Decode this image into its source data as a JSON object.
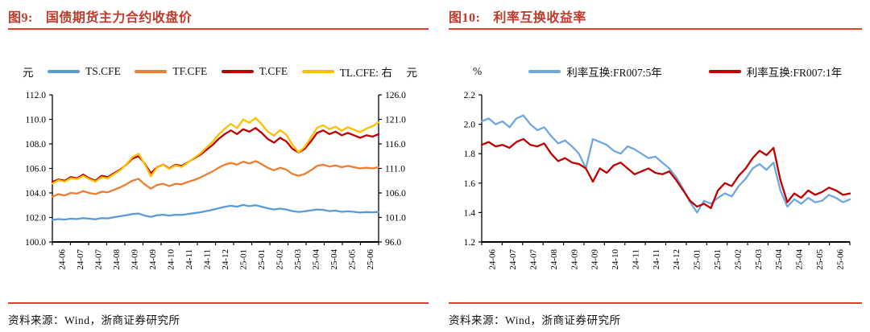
{
  "accent": {
    "title_color": "#c0392b",
    "rule_color": "#e83c2d",
    "axis_color": "#000000"
  },
  "figure9": {
    "label": "图9:",
    "title": "国债期货主力合约收盘价",
    "source_label": "资料来源：Wind，浙商证券研究所"
  },
  "figure10": {
    "label": "图10:",
    "title": "利率互换收益率",
    "source_label": "资料来源：Wind，浙商证券研究所"
  },
  "chart_data": [
    {
      "id": "treasury-futures",
      "type": "line",
      "title": "国债期货主力合约收盘价",
      "unit_left": "元",
      "unit_right": "元",
      "grid": false,
      "legend_position": "top",
      "x_tick_labels": [
        "24-06",
        "24-07",
        "24-07",
        "24-08",
        "24-09",
        "24-09",
        "24-10",
        "24-11",
        "24-11",
        "24-12",
        "25-01",
        "25-01",
        "25-02",
        "25-03",
        "25-04",
        "25-04",
        "25-05",
        "25-06"
      ],
      "y_axis_left": {
        "min": 100.0,
        "max": 112.0,
        "step": 2.0,
        "tick_labels": [
          "112.0",
          "110.0",
          "108.0",
          "106.0",
          "104.0",
          "102.0",
          "100.0"
        ]
      },
      "y_axis_right": {
        "min": 96.0,
        "max": 126.0,
        "step": 5.0,
        "tick_labels": [
          "126.0",
          "121.0",
          "116.0",
          "111.0",
          "106.0",
          "101.0",
          "96.0"
        ]
      },
      "series": [
        {
          "name": "TS.CFE",
          "color": "#5b9bd5",
          "axis": "left",
          "values": [
            101.8,
            101.87,
            101.83,
            101.9,
            101.87,
            101.95,
            101.9,
            101.85,
            101.95,
            101.93,
            102.02,
            102.1,
            102.18,
            102.28,
            102.32,
            102.15,
            102.05,
            102.18,
            102.22,
            102.15,
            102.22,
            102.2,
            102.28,
            102.35,
            102.42,
            102.52,
            102.62,
            102.75,
            102.87,
            102.95,
            102.88,
            103.02,
            102.92,
            103.0,
            102.88,
            102.75,
            102.65,
            102.72,
            102.65,
            102.52,
            102.45,
            102.5,
            102.58,
            102.65,
            102.62,
            102.52,
            102.56,
            102.46,
            102.5,
            102.46,
            102.4,
            102.44,
            102.42,
            102.46
          ]
        },
        {
          "name": "TF.CFE",
          "color": "#ed7d31",
          "axis": "left",
          "values": [
            103.7,
            103.9,
            103.8,
            104.0,
            103.95,
            104.15,
            104.0,
            103.9,
            104.1,
            104.05,
            104.25,
            104.45,
            104.7,
            105.0,
            105.15,
            104.7,
            104.35,
            104.65,
            104.75,
            104.55,
            104.75,
            104.7,
            104.9,
            105.05,
            105.25,
            105.5,
            105.75,
            106.05,
            106.3,
            106.45,
            106.3,
            106.55,
            106.4,
            106.6,
            106.35,
            106.05,
            105.85,
            106.05,
            105.9,
            105.55,
            105.4,
            105.55,
            105.85,
            106.2,
            106.3,
            106.15,
            106.25,
            106.1,
            106.2,
            106.1,
            106.0,
            106.05,
            106.0,
            106.1
          ]
        },
        {
          "name": "T.CFE",
          "color": "#c00000",
          "axis": "left",
          "values": [
            104.9,
            105.1,
            105.0,
            105.3,
            105.2,
            105.5,
            105.2,
            105.0,
            105.4,
            105.3,
            105.6,
            105.9,
            106.3,
            106.8,
            107.0,
            106.4,
            105.6,
            106.1,
            106.3,
            106.0,
            106.3,
            106.2,
            106.5,
            106.8,
            107.1,
            107.5,
            107.9,
            108.4,
            108.8,
            109.1,
            108.8,
            109.2,
            109.0,
            109.3,
            108.9,
            108.4,
            108.1,
            108.5,
            108.2,
            107.6,
            107.3,
            107.6,
            108.2,
            108.9,
            109.1,
            108.8,
            109.0,
            108.7,
            108.9,
            108.7,
            108.5,
            108.7,
            108.6,
            108.8
          ]
        },
        {
          "name": "TL.CFE: 右",
          "color": "#ffc000",
          "axis": "right",
          "values": [
            107.9,
            108.6,
            108.3,
            109.0,
            108.8,
            109.5,
            108.8,
            108.3,
            109.2,
            109.0,
            109.8,
            110.6,
            111.8,
            113.3,
            114.0,
            111.9,
            109.4,
            111.2,
            111.7,
            110.9,
            111.6,
            111.3,
            112.2,
            113.1,
            114.0,
            115.2,
            116.4,
            117.9,
            119.1,
            120.1,
            119.2,
            121.0,
            120.3,
            121.3,
            120.0,
            118.5,
            117.7,
            118.8,
            117.9,
            115.8,
            114.3,
            115.4,
            117.3,
            119.3,
            119.8,
            119.0,
            119.5,
            118.7,
            119.4,
            118.9,
            118.4,
            119.1,
            119.6,
            120.4
          ]
        }
      ]
    },
    {
      "id": "interest-rate-swap",
      "type": "line",
      "title": "利率互换收益率",
      "unit_left": "%",
      "unit_right": "",
      "grid": false,
      "legend_position": "top",
      "x_tick_labels": [
        "24-06",
        "24-07",
        "24-07",
        "24-08",
        "24-09",
        "24-09",
        "24-10",
        "24-11",
        "24-11",
        "24-12",
        "25-01",
        "25-01",
        "25-02",
        "25-03",
        "25-04",
        "25-04",
        "25-05",
        "25-06"
      ],
      "y_axis_left": {
        "min": 1.2,
        "max": 2.2,
        "step": 0.2,
        "tick_labels": [
          "2.2",
          "2.0",
          "1.8",
          "1.6",
          "1.4",
          "1.2"
        ]
      },
      "series": [
        {
          "name": "利率互换:FR007:5年",
          "color": "#6fa8dc",
          "axis": "left",
          "values": [
            2.02,
            2.04,
            2.0,
            2.02,
            1.98,
            2.04,
            2.06,
            2.0,
            1.96,
            1.98,
            1.92,
            1.87,
            1.89,
            1.85,
            1.8,
            1.7,
            1.9,
            1.88,
            1.86,
            1.82,
            1.8,
            1.85,
            1.83,
            1.8,
            1.77,
            1.78,
            1.74,
            1.7,
            1.64,
            1.56,
            1.47,
            1.4,
            1.48,
            1.46,
            1.5,
            1.53,
            1.51,
            1.58,
            1.63,
            1.7,
            1.73,
            1.69,
            1.74,
            1.55,
            1.44,
            1.49,
            1.46,
            1.5,
            1.47,
            1.48,
            1.52,
            1.5,
            1.47,
            1.49
          ]
        },
        {
          "name": "利率互换:FR007:1年",
          "color": "#c00000",
          "axis": "left",
          "values": [
            1.86,
            1.88,
            1.85,
            1.86,
            1.84,
            1.88,
            1.9,
            1.86,
            1.85,
            1.87,
            1.8,
            1.75,
            1.77,
            1.74,
            1.73,
            1.7,
            1.61,
            1.7,
            1.67,
            1.72,
            1.74,
            1.7,
            1.66,
            1.68,
            1.7,
            1.67,
            1.66,
            1.68,
            1.62,
            1.55,
            1.48,
            1.44,
            1.46,
            1.43,
            1.55,
            1.6,
            1.58,
            1.65,
            1.7,
            1.77,
            1.82,
            1.79,
            1.84,
            1.62,
            1.47,
            1.53,
            1.5,
            1.55,
            1.52,
            1.54,
            1.57,
            1.55,
            1.52,
            1.53
          ]
        }
      ]
    }
  ]
}
